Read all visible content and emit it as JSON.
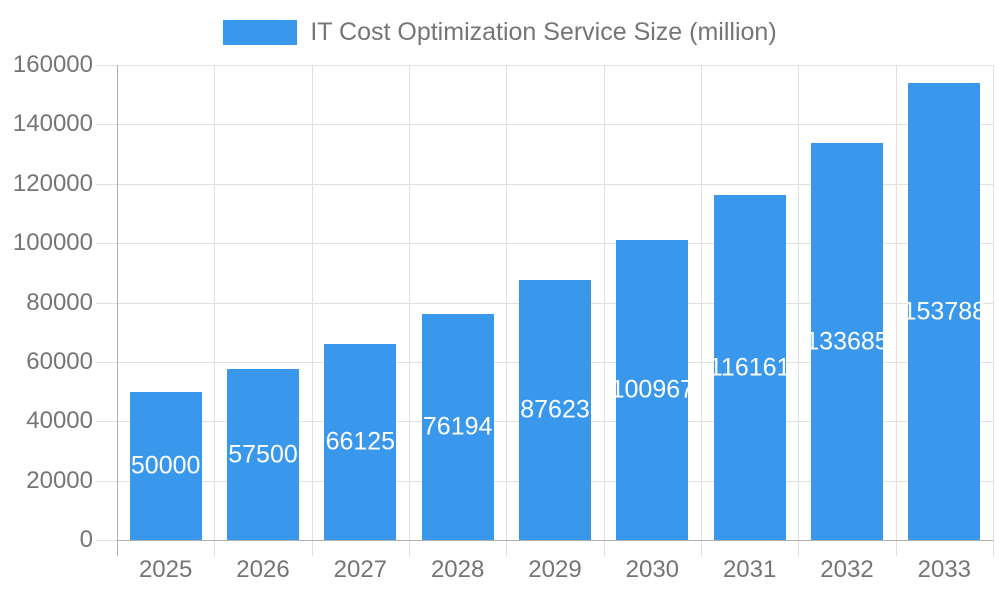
{
  "legend": {
    "label": "IT Cost Optimization Service Size (million)"
  },
  "colors": {
    "bar": "#3A98EC",
    "axis": "#b0b0b0",
    "grid": "#e0e0e0",
    "tick_text": "#757575",
    "value_text": "#ffffff",
    "background": "#ffffff"
  },
  "chart_data": {
    "type": "bar",
    "title": "IT Cost Optimization Service Size (million)",
    "series_name": "IT Cost Optimization Service Size (million)",
    "categories": [
      "2025",
      "2026",
      "2027",
      "2028",
      "2029",
      "2030",
      "2031",
      "2032",
      "2033"
    ],
    "values": [
      50000,
      57500,
      66125,
      76194,
      87623,
      100967,
      116161,
      133685,
      153788
    ],
    "value_labels": [
      "50000",
      "57500",
      "66125",
      "76194",
      "87623",
      "100967",
      "116161",
      "133685",
      "153788"
    ],
    "ytick_labels": [
      "0",
      "20000",
      "40000",
      "60000",
      "80000",
      "100000",
      "120000",
      "140000",
      "160000"
    ],
    "xlabel": "",
    "ylabel": "",
    "ylim": [
      0,
      160000
    ],
    "ytick_step": 20000,
    "grid": true,
    "legend_position": "top",
    "value_label_position": "inside-center",
    "value_label_color": "#ffffff",
    "bar_color": "#3A98EC"
  }
}
